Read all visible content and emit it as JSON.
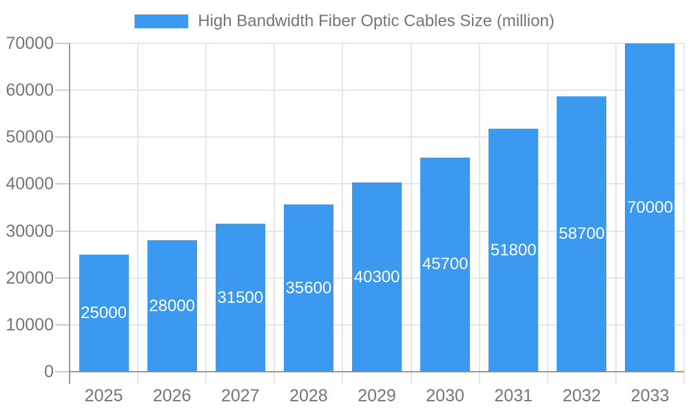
{
  "chart_data": {
    "type": "bar",
    "title": "High Bandwidth Fiber Optic Cables Size (million)",
    "categories": [
      "2025",
      "2026",
      "2027",
      "2028",
      "2029",
      "2030",
      "2031",
      "2032",
      "2033"
    ],
    "values": [
      25000,
      28000,
      31500,
      35600,
      40300,
      45700,
      51800,
      58700,
      70000
    ],
    "bar_labels": [
      "25000",
      "28000",
      "31500",
      "35600",
      "40300",
      "45700",
      "51800",
      "58700",
      "70000"
    ],
    "xlabel": "",
    "ylabel": "",
    "ylim": [
      0,
      70000
    ],
    "y_ticks": [
      0,
      10000,
      20000,
      30000,
      40000,
      50000,
      60000,
      70000
    ],
    "y_tick_labels": [
      "0",
      "10000",
      "20000",
      "30000",
      "40000",
      "50000",
      "60000",
      "70000"
    ],
    "grid": true,
    "legend_position": "top-center",
    "colors": {
      "bar": "#3b99f0",
      "bar_label": "#ffffff",
      "axis_text": "#757575",
      "title_text": "#757575",
      "gridline": "#e6e6e6",
      "axis_line": "#999999",
      "tick": "#cccccc",
      "background": "#ffffff"
    }
  }
}
